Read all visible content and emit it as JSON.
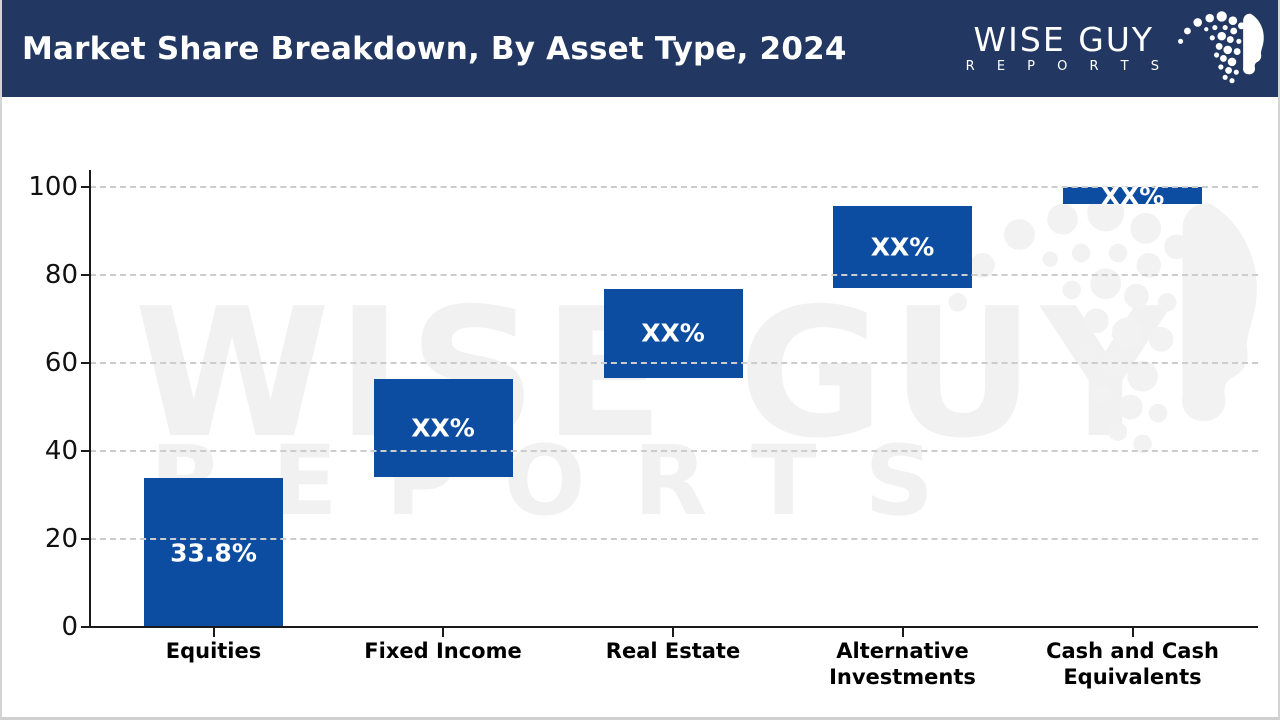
{
  "header": {
    "title": "Market Share Breakdown, By Asset Type, 2024",
    "logo": {
      "line1": "WISE GUY",
      "line2": "R E P O R T S",
      "face_icon": "dotted-head-profile"
    }
  },
  "watermark": {
    "line1": "WISE GUY",
    "line2": "REPORTS",
    "face_icon": "dotted-head-profile"
  },
  "chart_data": {
    "type": "bar",
    "subtype": "floating-waterfall",
    "title": "Market Share Breakdown, By Asset Type, 2024",
    "xlabel": "",
    "ylabel": "",
    "ylim": [
      0,
      100
    ],
    "yticks": [
      0,
      20,
      40,
      60,
      80,
      100
    ],
    "grid": "horizontal-dashed",
    "legend": "none",
    "categories": [
      "Equities",
      "Fixed Income",
      "Real Estate",
      "Alternative Investments",
      "Cash and Cash Equivalents"
    ],
    "category_lines": [
      [
        "Equities"
      ],
      [
        "Fixed Income"
      ],
      [
        "Real Estate"
      ],
      [
        "Alternative",
        "Investments"
      ],
      [
        "Cash and Cash",
        "Equivalents"
      ]
    ],
    "segments": [
      {
        "category": "Equities",
        "start": 0,
        "end": 33.8,
        "label": "33.8%"
      },
      {
        "category": "Fixed Income",
        "start": 34.0,
        "end": 56.4,
        "label": "XX%"
      },
      {
        "category": "Real Estate",
        "start": 56.6,
        "end": 76.9,
        "label": "XX%"
      },
      {
        "category": "Alternative Investments",
        "start": 77.0,
        "end": 95.7,
        "label": "XX%"
      },
      {
        "category": "Cash and Cash Equivalents",
        "start": 96.1,
        "end": 100,
        "label": "XX%"
      }
    ],
    "bar_color": "#0C4DA2",
    "bar_label_color": "#FFFFFF"
  },
  "colors": {
    "header_bg": "#223863",
    "header_text": "#FFFFFF",
    "bar": "#0C4DA2",
    "gridline": "#CCCCCC",
    "axis": "#1A1A1A",
    "watermark": "#F1F1F1"
  }
}
